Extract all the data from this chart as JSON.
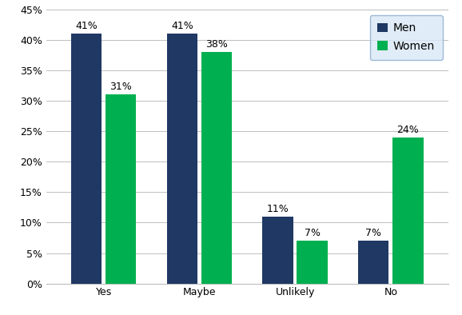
{
  "categories": [
    "Yes",
    "Maybe",
    "Unlikely",
    "No"
  ],
  "men_values": [
    41,
    41,
    11,
    7
  ],
  "women_values": [
    31,
    38,
    7,
    24
  ],
  "men_color": "#1F3864",
  "women_color": "#00B050",
  "men_label": "Men",
  "women_label": "Women",
  "ylim": [
    0,
    45
  ],
  "yticks": [
    0,
    5,
    10,
    15,
    20,
    25,
    30,
    35,
    40,
    45
  ],
  "bar_width": 0.32,
  "legend_facecolor": "#D9E8F5",
  "legend_edgecolor": "#8AACCF",
  "background_color": "#FFFFFF",
  "gridcolor": "#BEBEBE",
  "label_fontsize": 9,
  "tick_fontsize": 9,
  "legend_fontsize": 10,
  "bar_gap": 0.04
}
